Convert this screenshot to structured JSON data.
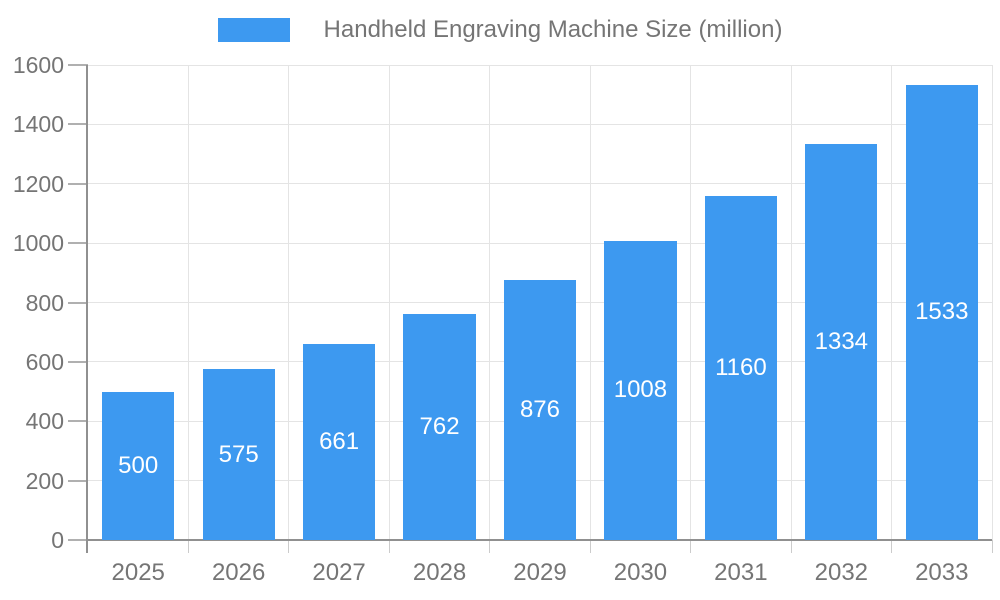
{
  "legend": {
    "label": "Handheld Engraving Machine Size (million)"
  },
  "chart_data": {
    "type": "bar",
    "title": "Handheld Engraving Machine Size (million)",
    "series_name": "Handheld Engraving Machine Size (million)",
    "categories": [
      "2025",
      "2026",
      "2027",
      "2028",
      "2029",
      "2030",
      "2031",
      "2032",
      "2033"
    ],
    "values": [
      500,
      575,
      661,
      762,
      876,
      1008,
      1160,
      1334,
      1533
    ],
    "value_labels": [
      "500",
      "575",
      "661",
      "762",
      "876",
      "1008",
      "1160",
      "1334",
      "1533"
    ],
    "xlabel": "",
    "ylabel": "",
    "ylim": [
      0,
      1600
    ],
    "yticks": [
      0,
      200,
      400,
      600,
      800,
      1000,
      1200,
      1400,
      1600
    ],
    "grid": true,
    "legend_position": "top-center",
    "value_labels_position": "inside-center"
  },
  "colors": {
    "bar": "#3d99f0",
    "grid": "#e4e4e4",
    "axis": "#909090",
    "tick_y": "#b0b0b0",
    "tick_x": "#cccccc",
    "text": "#757575",
    "value_label": "#ffffff",
    "background": "#ffffff"
  }
}
